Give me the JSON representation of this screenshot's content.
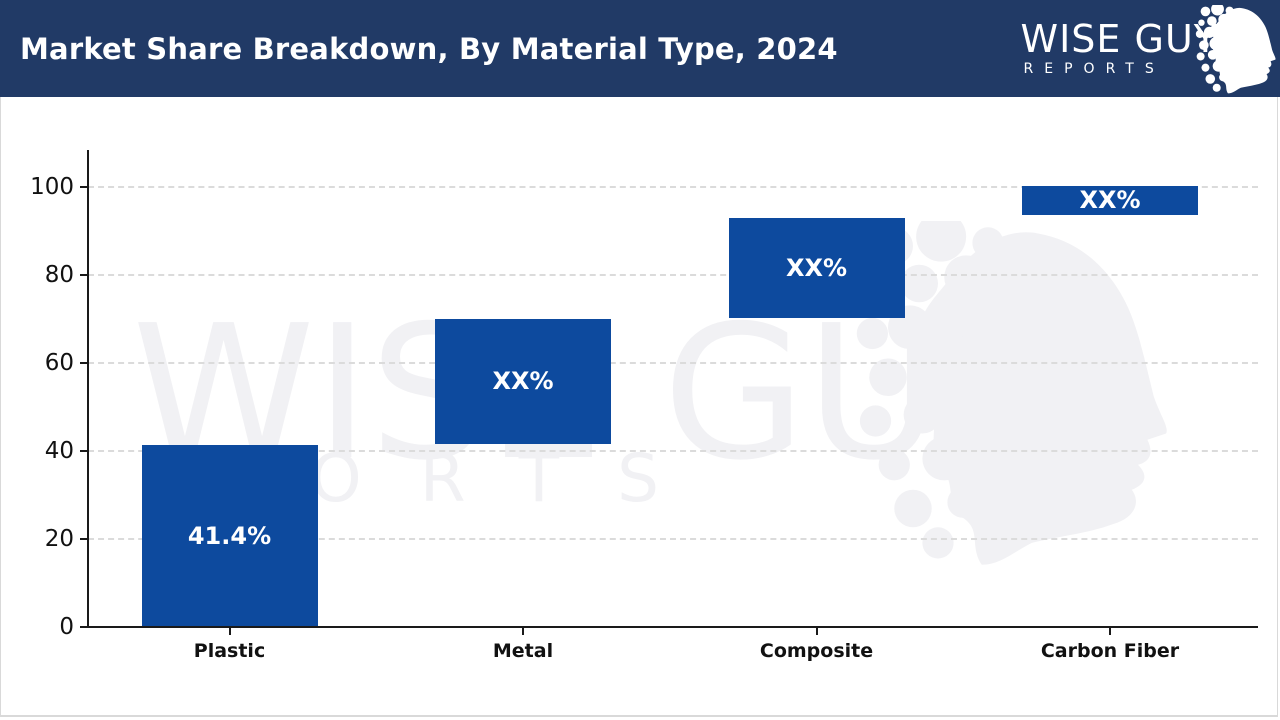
{
  "header": {
    "title": "Market Share Breakdown, By Material Type, 2024",
    "logo": {
      "line1": "WISE GUY",
      "line2": "REPORTS"
    }
  },
  "watermark": {
    "line1": "WISE GUY",
    "line2": "PORTS"
  },
  "chart_data": {
    "type": "bar",
    "subtype": "waterfall",
    "title": "Market Share Breakdown, By Material Type, 2024",
    "categories": [
      "Plastic",
      "Metal",
      "Composite",
      "Carbon Fiber"
    ],
    "segments": [
      {
        "category": "Plastic",
        "start": 0,
        "end": 41.4,
        "label": "41.4%"
      },
      {
        "category": "Metal",
        "start": 41.7,
        "end": 70.1,
        "label": "XX%"
      },
      {
        "category": "Composite",
        "start": 70.3,
        "end": 92.9,
        "label": "XX%"
      },
      {
        "category": "Carbon Fiber",
        "start": 93.6,
        "end": 100.3,
        "label": "XX%"
      }
    ],
    "yticks": [
      0,
      20,
      40,
      60,
      80,
      100
    ],
    "ylim": [
      0,
      108
    ],
    "xlabel": "",
    "ylabel": "",
    "grid": "horizontal-dashed",
    "legend": "none",
    "bar_color": "#0D4A9E",
    "bar_label_color": "#FFFFFF",
    "gridline_color": "#DBDBDB",
    "axis_color": "#1A1A1A"
  },
  "colors": {
    "header_bg": "#213A66",
    "header_text": "#FFFFFF",
    "watermark": "#F1F1F4",
    "page_bg": "#FFFFFF"
  }
}
